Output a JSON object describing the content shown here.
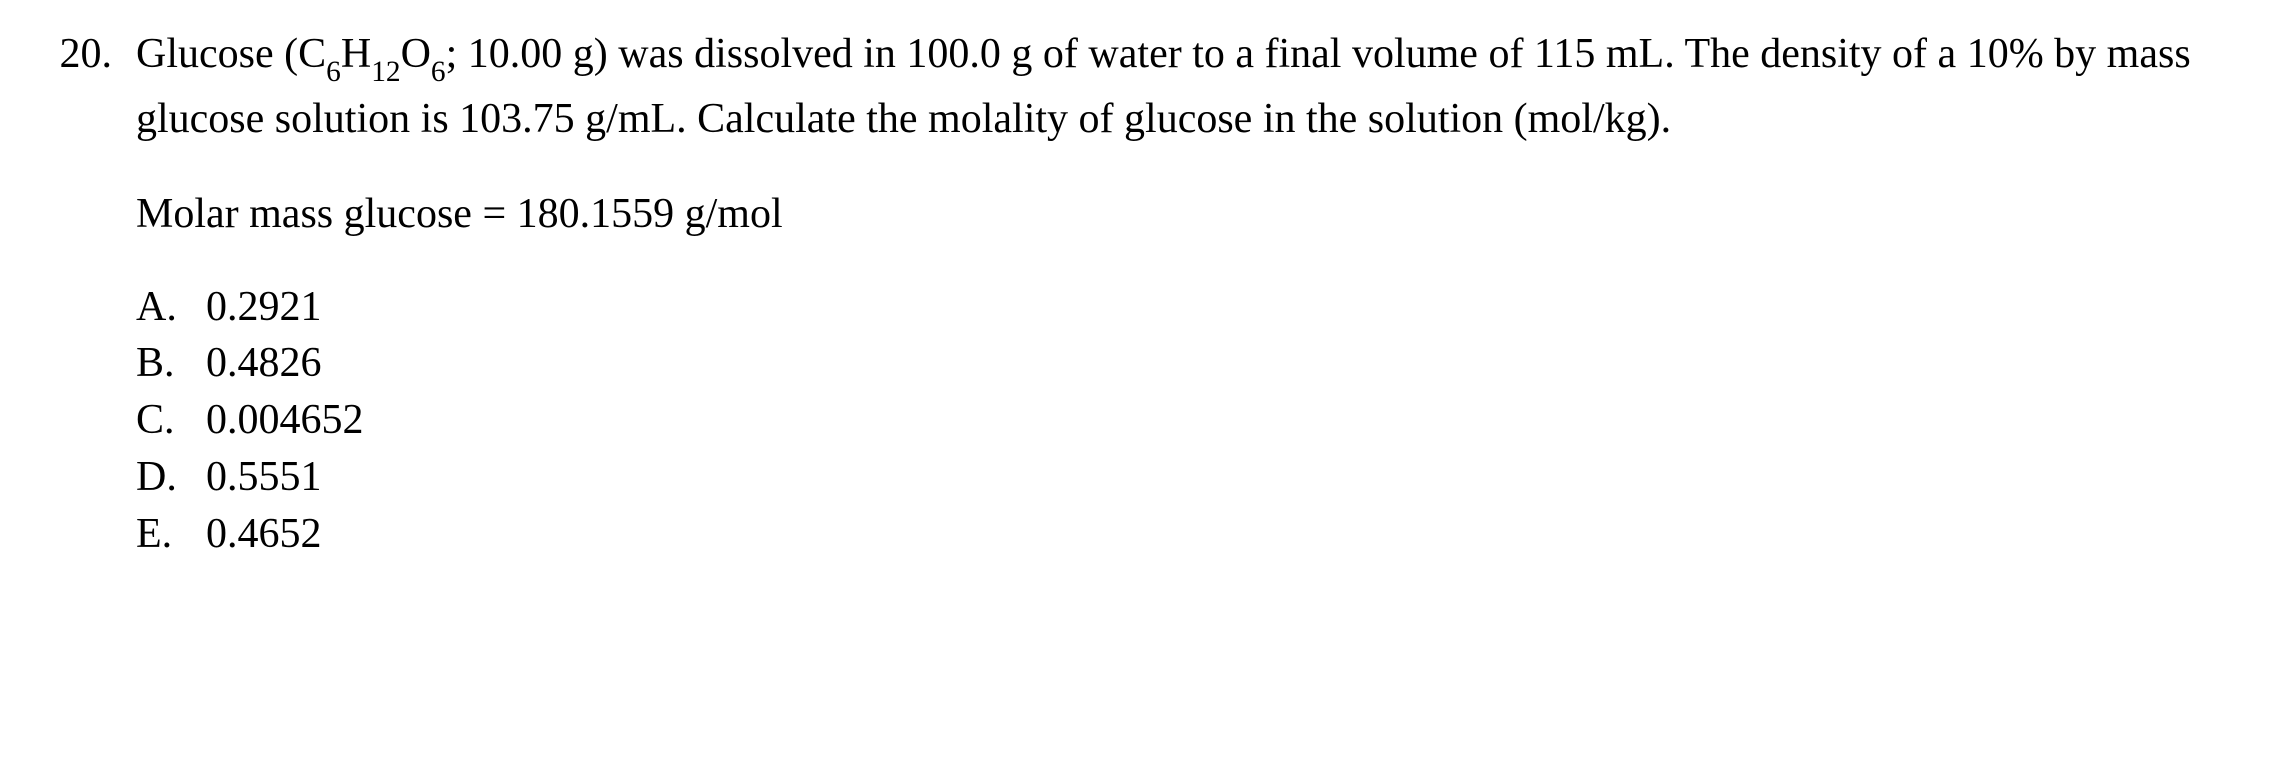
{
  "question": {
    "number": "20.",
    "stem_prefix": "Glucose (C",
    "formula_sub1": "6",
    "formula_mid1": "H",
    "formula_sub2": "12",
    "formula_mid2": "O",
    "formula_sub3": "6",
    "stem_suffix": "; 10.00 g) was dissolved in 100.0 g of water to a final volume of 115 mL. The density of a 10% by mass glucose solution is 103.75 g/mL. Calculate the molality of glucose in the solution (mol/kg).",
    "molar_mass_line": "Molar mass glucose = 180.1559 g/mol",
    "options": [
      {
        "letter": "A.",
        "value": "0.2921"
      },
      {
        "letter": "B.",
        "value": "0.4826"
      },
      {
        "letter": "C.",
        "value": "0.004652"
      },
      {
        "letter": "D.",
        "value": "0.5551"
      },
      {
        "letter": "E.",
        "value": "0.4652"
      }
    ]
  },
  "style": {
    "font_family": "Times New Roman",
    "font_size_pt": 32,
    "text_color": "#000000",
    "background_color": "#ffffff"
  }
}
